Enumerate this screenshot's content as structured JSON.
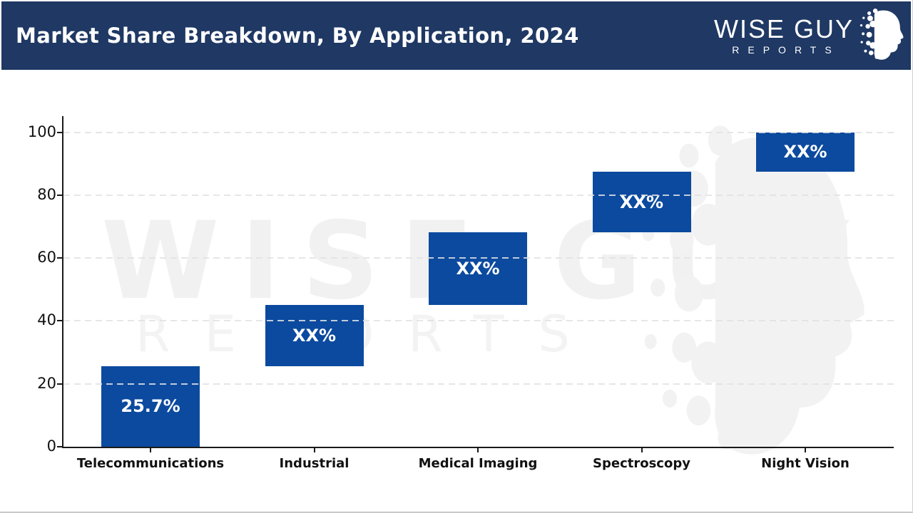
{
  "header": {
    "title": "Market Share Breakdown, By Application, 2024",
    "logo": {
      "line1": "WISE GUY",
      "line2": "REPORTS"
    }
  },
  "watermark": {
    "line1": "WISE GUY",
    "line2": "REPORTS"
  },
  "chart_data": {
    "type": "bar",
    "subtype": "waterfall",
    "title": "Market Share Breakdown, By Application, 2024",
    "xlabel": "",
    "ylabel": "",
    "categories": [
      "Telecommunications",
      "Industrial",
      "Medical Imaging",
      "Spectroscopy",
      "Night Vision"
    ],
    "segments": [
      {
        "category": "Telecommunications",
        "start": 0,
        "end": 25.7,
        "label": "25.7%"
      },
      {
        "category": "Industrial",
        "start": 25.7,
        "end": 45.0,
        "label": "XX%"
      },
      {
        "category": "Medical Imaging",
        "start": 45.0,
        "end": 68.2,
        "label": "XX%"
      },
      {
        "category": "Spectroscopy",
        "start": 68.2,
        "end": 87.4,
        "label": "XX%"
      },
      {
        "category": "Night Vision",
        "start": 87.4,
        "end": 100,
        "label": "XX%"
      }
    ],
    "yticks": [
      0,
      20,
      40,
      60,
      80,
      100
    ],
    "ylim": [
      0,
      105
    ],
    "grid": "horizontal-dashed",
    "legend": "none",
    "bar_color": "#0b4a9f",
    "bar_label_color": "#ffffff"
  },
  "colors": {
    "header_bg": "#1f3864",
    "bar": "#0b4a9f",
    "axis": "#1a1a1a",
    "gridline": "#e2e2e2",
    "watermark": "#f1f1f1"
  }
}
